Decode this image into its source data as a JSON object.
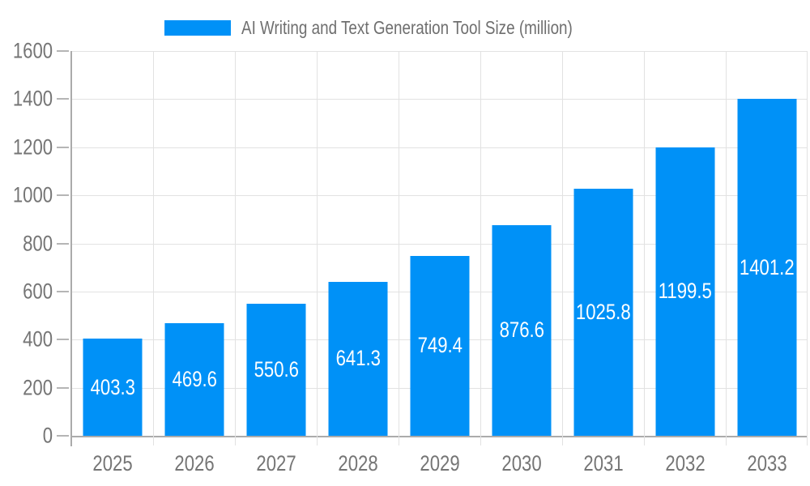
{
  "chart_data": {
    "type": "bar",
    "title": "AI Writing and Text Generation Tool Size (million)",
    "legend_position": "top-center",
    "categories": [
      "2025",
      "2026",
      "2027",
      "2028",
      "2029",
      "2030",
      "2031",
      "2032",
      "2033"
    ],
    "series": [
      {
        "name": "AI Writing and Text Generation Tool Size (million)",
        "values": [
          403.3,
          469.6,
          550.6,
          641.3,
          749.4,
          876.6,
          1025.8,
          1199.5,
          1401.2
        ]
      }
    ],
    "value_labels": [
      "403.3",
      "469.6",
      "550.6",
      "641.3",
      "749.4",
      "876.6",
      "1025.8",
      "1199.5",
      "1401.2"
    ],
    "xlabel": "",
    "ylabel": "",
    "ylim": [
      0,
      1600
    ],
    "yticks": [
      0,
      200,
      400,
      600,
      800,
      1000,
      1200,
      1400,
      1600
    ],
    "grid": true,
    "colors": {
      "bar": "#0091f7",
      "value_label": "#ffffff",
      "axis_text": "#757575",
      "legend_text": "#6f6f6f",
      "gridline": "#e2e2e2",
      "axis_line": "#ababab",
      "tick": "#b5b5b5",
      "background": "#ffffff"
    }
  }
}
